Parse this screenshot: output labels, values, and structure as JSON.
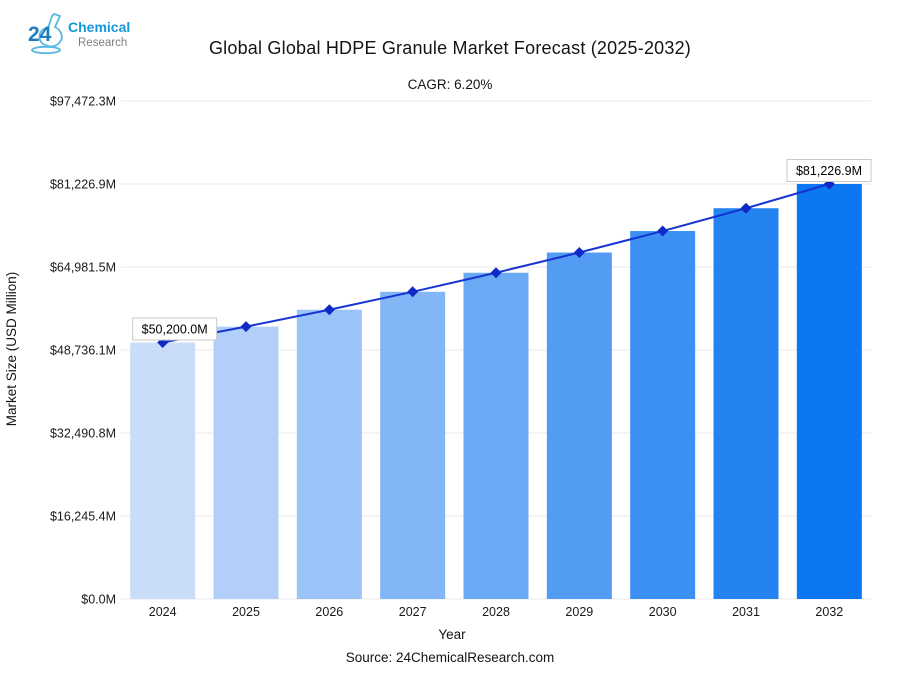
{
  "logo": {
    "number": "24",
    "line1": "Chemical",
    "line2": "Research"
  },
  "header": {
    "title": "Global Global HDPE Granule Market Forecast (2025-2032)",
    "subtitle": "CAGR: 6.20%"
  },
  "chart_data": {
    "type": "bar",
    "overlay": "line",
    "categories": [
      "2024",
      "2025",
      "2026",
      "2027",
      "2028",
      "2029",
      "2030",
      "2031",
      "2032"
    ],
    "values": [
      50200.0,
      53312.4,
      56617.8,
      60128.1,
      63856.0,
      67815.1,
      72019.6,
      76484.8,
      81226.9
    ],
    "title": "Global Global HDPE Granule Market Forecast (2025-2032)",
    "xlabel": "Year",
    "ylabel": "Market Size (USD Million)",
    "ylim": [
      0,
      97472.3
    ],
    "grid": true,
    "legend": "none",
    "yticks": [
      {
        "value": 0,
        "label": "$0.0M"
      },
      {
        "value": 16245.4,
        "label": "$16,245.4M"
      },
      {
        "value": 32490.8,
        "label": "$32,490.8M"
      },
      {
        "value": 48736.1,
        "label": "$48,736.1M"
      },
      {
        "value": 64981.5,
        "label": "$64,981.5M"
      },
      {
        "value": 81226.9,
        "label": "$81,226.9M"
      },
      {
        "value": 97472.3,
        "label": "$97,472.3M"
      }
    ],
    "annotations": [
      {
        "index": 0,
        "label": "$50,200.0M",
        "anchor": "left"
      },
      {
        "index": 8,
        "label": "$81,226.9M",
        "anchor": "right"
      }
    ],
    "bar_colors": [
      "#c9dcf9",
      "#b1cff8",
      "#9ac3f7",
      "#82b6f6",
      "#6aa9f4",
      "#529df3",
      "#3b90f2",
      "#2383f1",
      "#0b77f0"
    ],
    "line_color": "#1634d2",
    "marker_color": "#0f2ac6"
  },
  "footer": {
    "source": "Source: 24ChemicalResearch.com"
  }
}
